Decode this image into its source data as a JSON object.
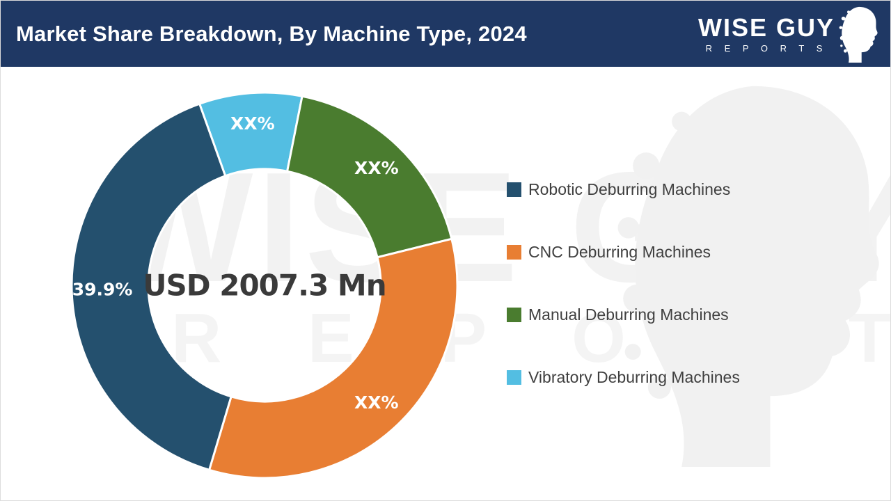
{
  "header": {
    "title": "Market Share Breakdown, By Machine Type, 2024",
    "bg_color": "#1F3864",
    "logo": {
      "line1": "WISE GUY",
      "line2": "R E P O R T S"
    }
  },
  "chart_data": {
    "type": "donut",
    "title": "Market Share Breakdown, By Machine Type, 2024",
    "center_label": "USD 2007.3 Mn",
    "start_angle_deg": -19.7,
    "legend_position": "right",
    "segments": [
      {
        "label": "Vibratory Deburring Machines",
        "display_label": "XX%",
        "value_pct": 8.6,
        "color": "#53BEE2"
      },
      {
        "label": "Manual Deburring Machines",
        "display_label": "XX%",
        "value_pct": 18.0,
        "color": "#4A7C2F"
      },
      {
        "label": "CNC Deburring Machines",
        "display_label": "XX%",
        "value_pct": 33.5,
        "color": "#E87E33"
      },
      {
        "label": "Robotic Deburring Machines",
        "display_label": "39.9%",
        "value_pct": 39.9,
        "color": "#24506E"
      }
    ],
    "legend": {
      "items": [
        {
          "label": "Robotic Deburring Machines",
          "color": "#24506E"
        },
        {
          "label": "CNC Deburring Machines",
          "color": "#E87E33"
        },
        {
          "label": "Manual Deburring Machines",
          "color": "#4A7C2F"
        },
        {
          "label": "Vibratory Deburring Machines",
          "color": "#53BEE2"
        }
      ]
    }
  },
  "watermark": {
    "line1": "WISE GUY",
    "line2": "R E P O R T S"
  }
}
